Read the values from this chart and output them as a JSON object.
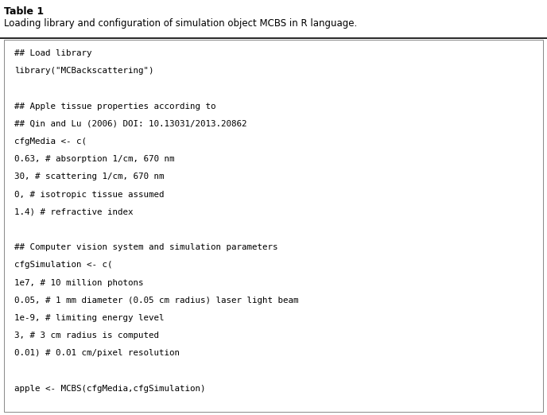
{
  "table_label": "Table 1",
  "caption": "Loading library and configuration of simulation object MCBS in R language.",
  "code_lines": [
    "## Load library",
    "library(\"MCBackscattering\")",
    "",
    "## Apple tissue properties according to",
    "## Qin and Lu (2006) DOI: 10.13031/2013.20862",
    "cfgMedia <- c(",
    "0.63, # absorption 1/cm, 670 nm",
    "30, # scattering 1/cm, 670 nm",
    "0, # isotropic tissue assumed",
    "1.4) # refractive index",
    "",
    "## Computer vision system and simulation parameters",
    "cfgSimulation <- c(",
    "1e7, # 10 million photons",
    "0.05, # 1 mm diameter (0.05 cm radius) laser light beam",
    "1e-9, # limiting energy level",
    "3, # 3 cm radius is computed",
    "0.01) # 0.01 cm/pixel resolution",
    "",
    "apple <- MCBS(cfgMedia,cfgSimulation)"
  ],
  "title_fontsize": 9,
  "caption_fontsize": 8.5,
  "code_fontsize": 7.8,
  "fig_width": 6.88,
  "fig_height": 5.22,
  "dpi": 100,
  "box_bg": "#ffffff",
  "fig_bg": "#ffffff",
  "header_bg": "#ffffff",
  "line_color": "#000000"
}
